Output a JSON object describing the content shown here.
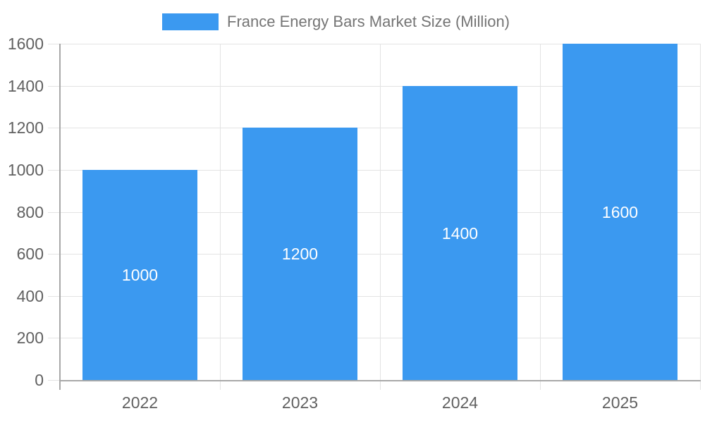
{
  "legend": {
    "label": "France Energy Bars Market Size (Million)"
  },
  "colors": {
    "bar": "#3B99F0",
    "grid": "#E3E3E3",
    "axis": "#A8A8A8",
    "axis_label": "#616161",
    "legend_text": "#757575",
    "value_label": "#FFFFFF",
    "background": "#FFFFFF"
  },
  "chart_data": {
    "type": "bar",
    "title": "France Energy Bars Market Size (Million)",
    "categories": [
      "2022",
      "2023",
      "2024",
      "2025"
    ],
    "values": [
      1000,
      1200,
      1400,
      1600
    ],
    "value_labels": [
      "1000",
      "1200",
      "1400",
      "1600"
    ],
    "xlabel": "",
    "ylabel": "",
    "ylim": [
      0,
      1600
    ],
    "yticks": [
      0,
      200,
      400,
      600,
      800,
      1000,
      1200,
      1400,
      1600
    ],
    "ytick_labels": [
      "0",
      "200",
      "400",
      "600",
      "800",
      "1000",
      "1200",
      "1400",
      "1600"
    ],
    "grid": true,
    "legend_position": "top",
    "value_labels_inside_bars": true
  }
}
